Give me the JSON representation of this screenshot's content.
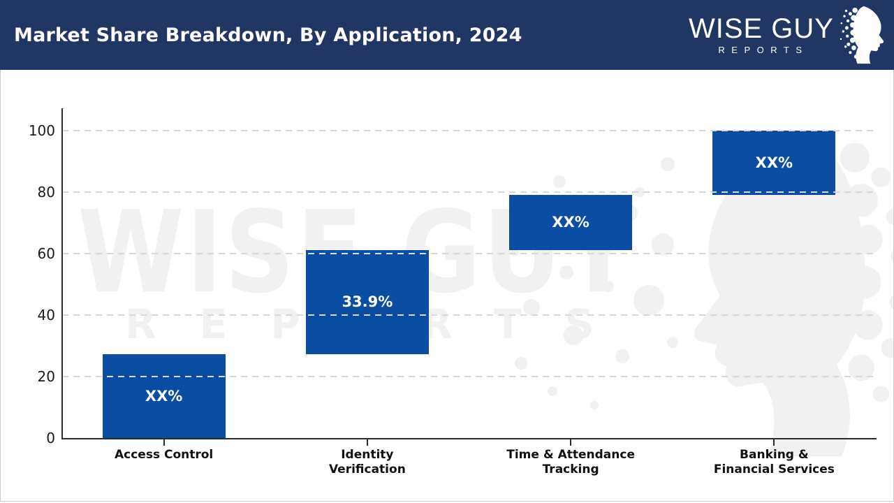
{
  "header": {
    "title": "Market Share Breakdown, By Application, 2024",
    "logo": {
      "wordmark": "WISE GUY",
      "subtext": "REPORTS"
    }
  },
  "watermark": {
    "wordmark": "WISE GUY",
    "subtext": "REPORTS"
  },
  "chart_data": {
    "type": "bar",
    "variant": "waterfall",
    "title": "Market Share Breakdown, By Application, 2024",
    "categories": [
      "Access Control",
      "Identity Verification",
      "Time & Attendance Tracking",
      "Banking & Financial Services"
    ],
    "category_label_lines": [
      [
        "Access Control"
      ],
      [
        "Identity",
        "Verification"
      ],
      [
        "Time & Attendance",
        "Tracking"
      ],
      [
        "Banking &",
        "Financial Services"
      ]
    ],
    "bars": [
      {
        "category": "Access Control",
        "start": 0,
        "end": 27.3,
        "value_label": "XX%"
      },
      {
        "category": "Identity Verification",
        "start": 27.3,
        "end": 61.2,
        "value_label": "33.9%",
        "value": 33.9
      },
      {
        "category": "Time & Attendance Tracking",
        "start": 61.2,
        "end": 79.1,
        "value_label": "XX%"
      },
      {
        "category": "Banking & Financial Services",
        "start": 79.1,
        "end": 100,
        "value_label": "XX%"
      }
    ],
    "xlabel": "",
    "ylabel": "",
    "ylim": [
      0,
      100
    ],
    "yticks": [
      0,
      20,
      40,
      60,
      80,
      100
    ],
    "grid": {
      "horizontal": true,
      "style": "dashed"
    },
    "legend": null
  },
  "colors": {
    "header_bg": "#203763",
    "bar_fill": "#0B4DA2",
    "bar_label": "#FFFFFF",
    "title_text": "#FFFFFF",
    "axis_line": "#2B2B2B",
    "tick_label": "#1A1A1A",
    "gridline": "#D8D8D8",
    "watermark": "#F1F1F1",
    "chart_bg": "#FFFFFF",
    "border": "#CCCCCC"
  }
}
